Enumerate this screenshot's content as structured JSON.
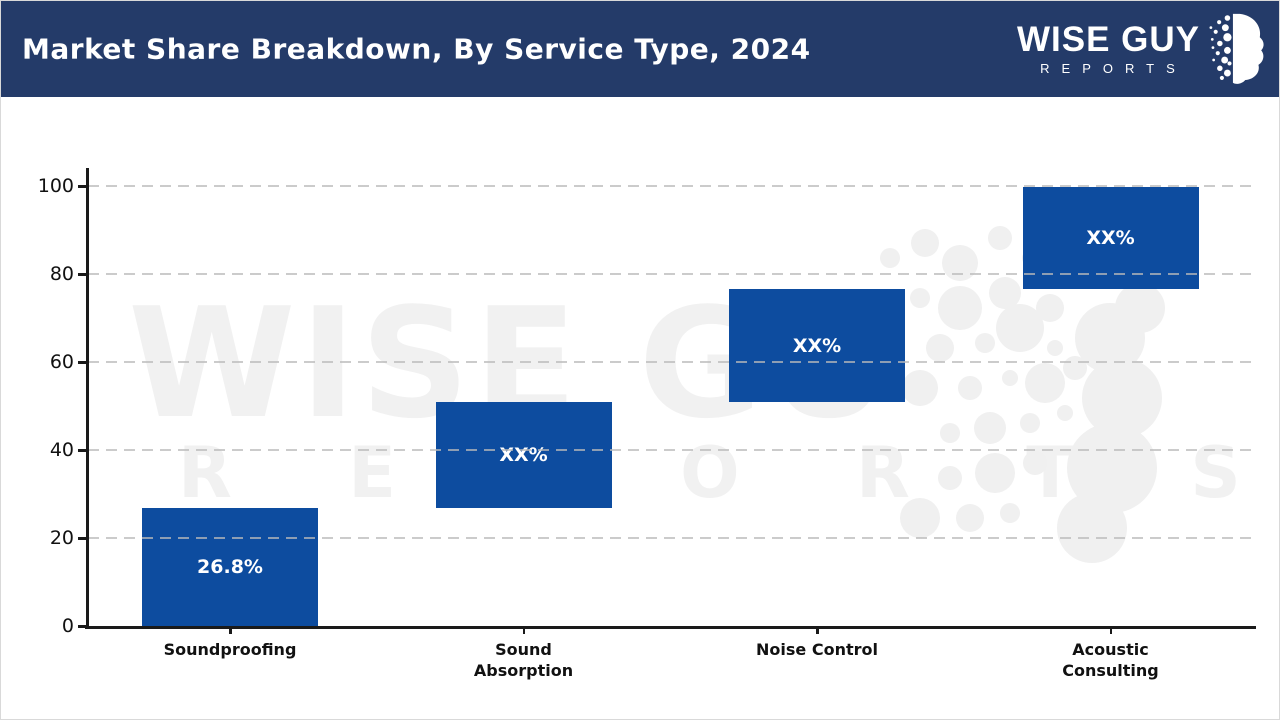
{
  "header": {
    "title": "Market Share Breakdown, By Service Type, 2024",
    "logo": {
      "brand": "WISE GUY",
      "sub": "REPORTS"
    }
  },
  "watermark": {
    "line1": "WISE GU",
    "line2": "R E P O R T S"
  },
  "colors": {
    "header_bg": "#243b69",
    "bar_fill": "#0d4c9f",
    "bar_label_text": "#ffffff",
    "grid_line": "#d6d6d6",
    "axis_line": "#1a1a1a",
    "tick_text": "#111111",
    "watermark": "#f1f1f1"
  },
  "chart_data": {
    "type": "bar",
    "variant": "waterfall",
    "title": "Market Share Breakdown, By Service Type, 2024",
    "categories": [
      "Soundproofing",
      "Sound Absorption",
      "Noise Control",
      "Acoustic Consulting"
    ],
    "series": [
      {
        "name": "Market Share (%)",
        "segments": [
          {
            "category": "Soundproofing",
            "start": 0,
            "end": 26.8,
            "label": "26.8%"
          },
          {
            "category": "Sound Absorption",
            "start": 26.8,
            "end": 50.9,
            "label": "XX%"
          },
          {
            "category": "Noise Control",
            "start": 50.9,
            "end": 76.6,
            "label": "XX%"
          },
          {
            "category": "Acoustic Consulting",
            "start": 76.6,
            "end": 99.8,
            "label": "XX%"
          }
        ]
      }
    ],
    "xlabel": "",
    "ylabel": "",
    "ylim": [
      0,
      104
    ],
    "yticks": [
      0,
      20,
      40,
      60,
      80,
      100
    ],
    "grid": "horizontal-dashed",
    "legend": "none"
  }
}
